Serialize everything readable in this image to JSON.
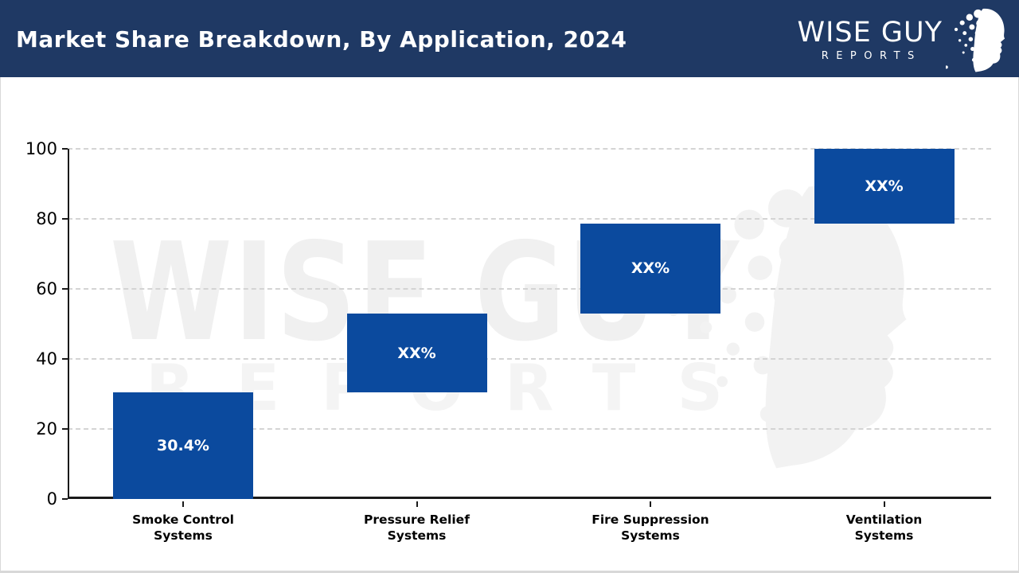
{
  "header": {
    "title": "Market Share Breakdown, By Application, 2024",
    "brand": {
      "top": "WISE GUY",
      "bottom": "REPORTS"
    },
    "bg_color": "#1f3964"
  },
  "watermark": {
    "line1": "WISE GUY",
    "line2": "REPORTS"
  },
  "chart_data": {
    "type": "bar",
    "subtype": "waterfall",
    "title": "Market Share Breakdown, By Application, 2024",
    "xlabel": "",
    "ylabel": "",
    "ylim": [
      0,
      100
    ],
    "yticks": [
      0,
      20,
      40,
      60,
      80,
      100
    ],
    "grid": "horizontal-dashed",
    "legend": "none",
    "bar_color": "#0b4a9e",
    "bar_label_color": "#ffffff",
    "categories": [
      "Smoke Control\nSystems",
      "Pressure Relief\nSystems",
      "Fire Suppression\nSystems",
      "Ventilation\nSystems"
    ],
    "segments": [
      {
        "start": 0,
        "end": 30.4,
        "value": 30.4,
        "label": "30.4%"
      },
      {
        "start": 30.4,
        "end": 53,
        "value": 22.6,
        "label": "XX%"
      },
      {
        "start": 53,
        "end": 78.6,
        "value": 25.6,
        "label": "XX%"
      },
      {
        "start": 78.6,
        "end": 100,
        "value": 21.4,
        "label": "XX%"
      }
    ]
  }
}
